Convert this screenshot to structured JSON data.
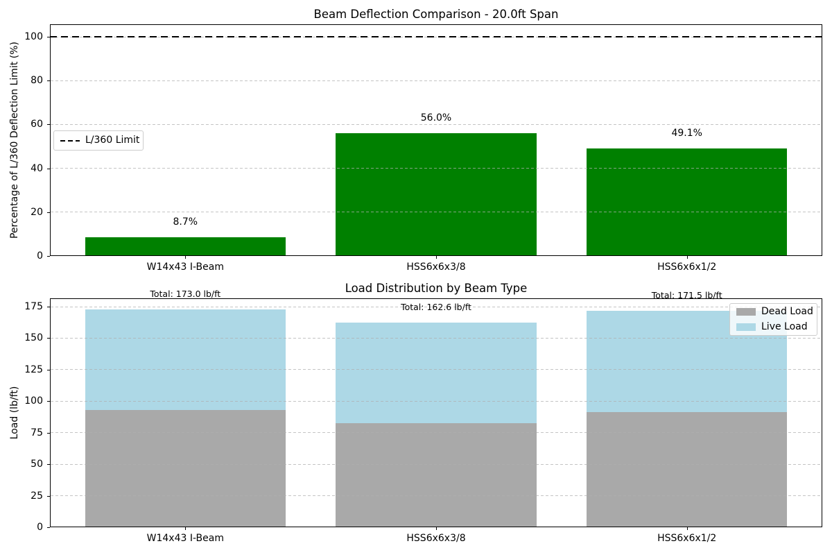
{
  "figure": {
    "background": "#ffffff",
    "text_color": "#000000"
  },
  "chart_data": [
    {
      "type": "bar",
      "title": "Beam Deflection Comparison - 20.0ft Span",
      "xlabel": "",
      "ylabel": "Percentage of L/360 Deflection Limit (%)",
      "categories": [
        "W14x43 I-Beam",
        "HSS6x6x3/8",
        "HSS6x6x1/2"
      ],
      "values": [
        8.7,
        56.0,
        49.1
      ],
      "bar_labels": [
        "8.7%",
        "56.0%",
        "49.1%"
      ],
      "bar_color": "#008000",
      "ylim": [
        0,
        105.7
      ],
      "yticks": [
        0,
        20,
        40,
        60,
        80,
        100
      ],
      "ytick_labels": [
        "0",
        "20",
        "40",
        "60",
        "80",
        "100"
      ],
      "grid": "horizontal-dashed",
      "reference_line": {
        "value": 100,
        "color": "#000000",
        "style": "dashed",
        "label": "L/360 Limit"
      },
      "legend": {
        "position": "center-left",
        "entries": [
          {
            "label": "L/360 Limit",
            "swatch": "dashed-line",
            "color": "#000000"
          }
        ]
      }
    },
    {
      "type": "stacked-bar",
      "title": "Load Distribution by Beam Type",
      "xlabel": "",
      "ylabel": "Load (lb/ft)",
      "categories": [
        "W14x43 I-Beam",
        "HSS6x6x3/8",
        "HSS6x6x1/2"
      ],
      "series": [
        {
          "name": "Dead Load",
          "color": "#a9a9a9",
          "values": [
            93.0,
            82.6,
            91.5
          ]
        },
        {
          "name": "Live Load",
          "color": "#add8e6",
          "values": [
            80.0,
            80.0,
            80.0
          ]
        }
      ],
      "totals": [
        173.0,
        162.6,
        171.5
      ],
      "total_labels": [
        "Total: 173.0 lb/ft",
        "Total: 162.6 lb/ft",
        "Total: 171.5 lb/ft"
      ],
      "ylim": [
        0,
        181.65
      ],
      "yticks": [
        0,
        25,
        50,
        75,
        100,
        125,
        150,
        175
      ],
      "ytick_labels": [
        "0",
        "25",
        "50",
        "75",
        "100",
        "125",
        "150",
        "175"
      ],
      "grid": "horizontal-dashed",
      "legend": {
        "position": "top-right",
        "entries": [
          {
            "label": "Dead Load",
            "swatch": "patch",
            "color": "#a9a9a9"
          },
          {
            "label": "Live Load",
            "swatch": "patch",
            "color": "#add8e6"
          }
        ]
      }
    }
  ]
}
